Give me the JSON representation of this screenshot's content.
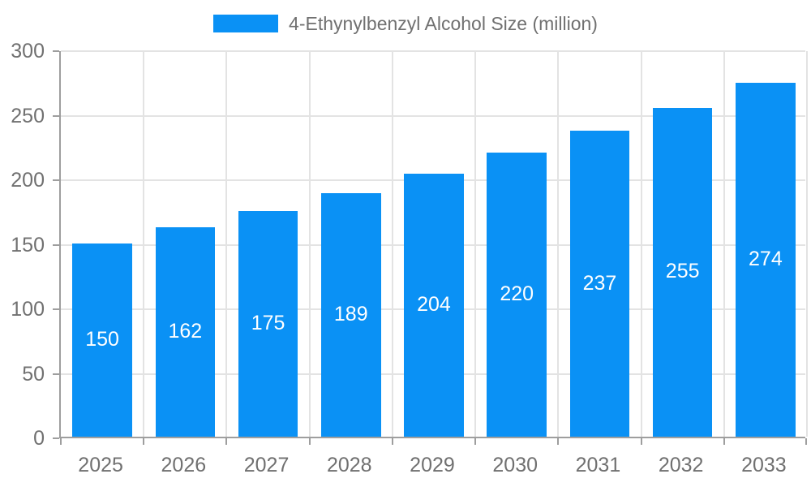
{
  "title": "4-Ethynylbenzyl Alcohol Size (million)",
  "colors": {
    "bar": "#0a91f5",
    "axis_text": "#707070",
    "grid_line": "#e3e3e3",
    "axis_line": "#9e9e9e",
    "bar_label": "#ffffff",
    "background": "#ffffff"
  },
  "legend": {
    "items": [
      {
        "label": "4-Ethynylbenzyl Alcohol Size (million)",
        "swatch_color": "#0a91f5"
      }
    ]
  },
  "chart_data": {
    "type": "bar",
    "title": "4-Ethynylbenzyl Alcohol Size (million)",
    "categories": [
      "2025",
      "2026",
      "2027",
      "2028",
      "2029",
      "2030",
      "2031",
      "2032",
      "2033"
    ],
    "values": [
      150,
      162,
      175,
      189,
      204,
      220,
      237,
      255,
      274
    ],
    "series_name": "4-Ethynylbenzyl Alcohol Size (million)",
    "xlabel": "",
    "ylabel": "",
    "ylim": [
      0,
      300
    ],
    "yticks": [
      0,
      50,
      100,
      150,
      200,
      250,
      300
    ],
    "grid": true,
    "legend_position": "top-center",
    "value_labels": "inside-center"
  }
}
